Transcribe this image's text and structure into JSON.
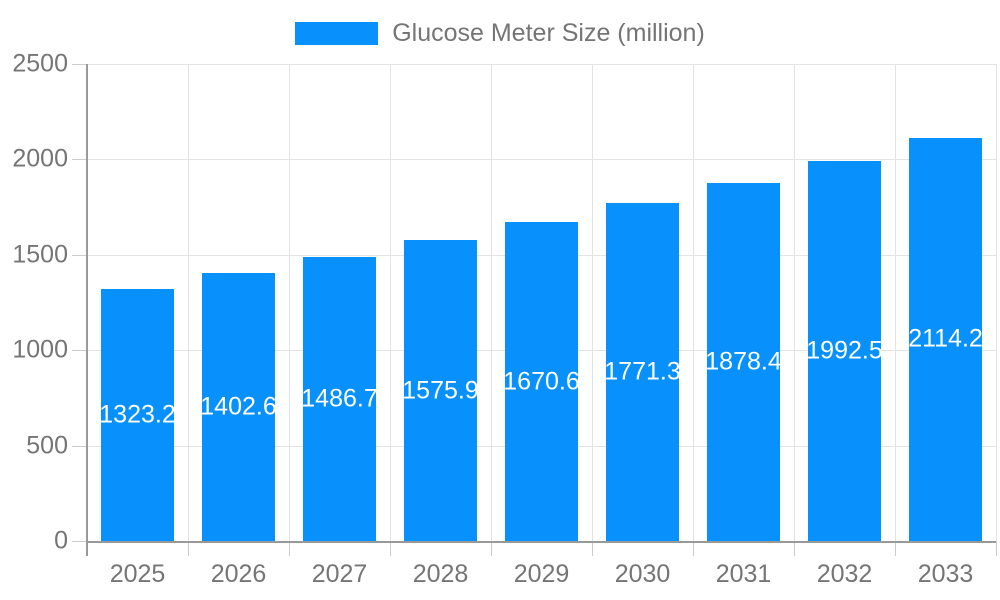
{
  "chart_data": {
    "type": "bar",
    "title": "Glucose Meter Size (million)",
    "categories": [
      "2025",
      "2026",
      "2027",
      "2028",
      "2029",
      "2030",
      "2031",
      "2032",
      "2033"
    ],
    "values": [
      1323.2,
      1402.6,
      1486.7,
      1575.9,
      1670.6,
      1771.3,
      1878.4,
      1992.5,
      2114.2
    ],
    "value_labels": [
      "1323.2",
      "1402.6",
      "1486.7",
      "1575.9",
      "1670.6",
      "1771.3",
      "1878.4",
      "1992.5",
      "2114.2"
    ],
    "xlabel": "",
    "ylabel": "",
    "ylim": [
      0,
      2500
    ],
    "yticks": [
      0,
      500,
      1000,
      1500,
      2000,
      2500
    ],
    "ytick_labels": [
      "0",
      "500",
      "1000",
      "1500",
      "2000",
      "2500"
    ],
    "grid": true,
    "legend_position": "top",
    "bar_color": "#0890FC",
    "value_label_color": "#FFFFFF"
  },
  "style": {
    "axis_color": "#999999",
    "grid_color": "#E3E3E3",
    "tick_color": "#CCCCCC",
    "label_color": "#757575",
    "background": "#FFFFFF"
  }
}
